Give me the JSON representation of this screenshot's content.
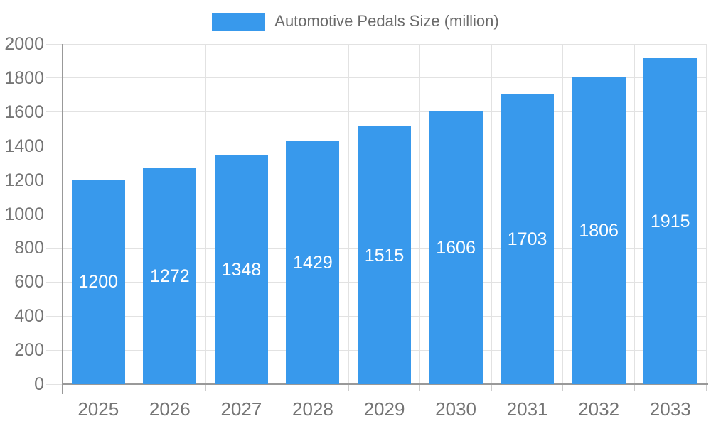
{
  "legend": {
    "label": "Automotive Pedals Size (million)"
  },
  "colors": {
    "bar": "#3899EC",
    "grid": "#e2e2e2",
    "tick": "#cccccc",
    "axis": "#999999",
    "axis_text": "#757575",
    "legend_text": "#6a6a6a",
    "value_text": "#ffffff"
  },
  "chart_data": {
    "type": "bar",
    "title": "Automotive Pedals Size (million)",
    "categories": [
      "2025",
      "2026",
      "2027",
      "2028",
      "2029",
      "2030",
      "2031",
      "2032",
      "2033"
    ],
    "values": [
      1200,
      1272,
      1348,
      1429,
      1515,
      1606,
      1703,
      1806,
      1915
    ],
    "xlabel": "",
    "ylabel": "",
    "ylim": [
      0,
      2000
    ],
    "yticks": [
      0,
      200,
      400,
      600,
      800,
      1000,
      1200,
      1400,
      1600,
      1800,
      2000
    ],
    "grid": true,
    "legend_position": "top",
    "bar_value_labels": "inside-center"
  }
}
